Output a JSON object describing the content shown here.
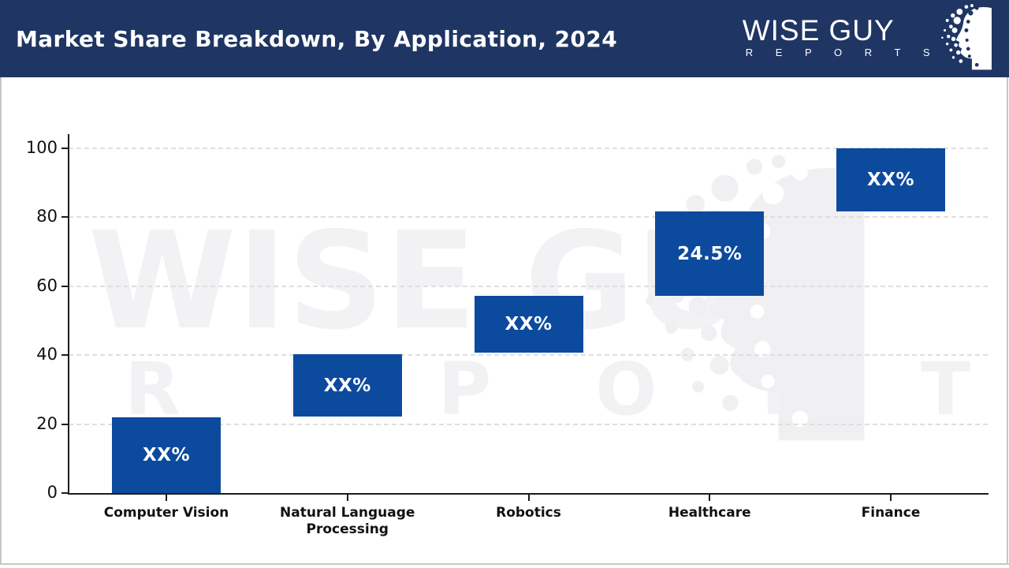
{
  "header": {
    "title": "Market Share Breakdown, By Application, 2024",
    "background_color": "#1f3563",
    "logo": {
      "line1": "WISE GUY",
      "line2": "R E P O R T S"
    }
  },
  "watermark": {
    "line1": "WISE GUY",
    "line2": "R E P O R T S"
  },
  "chart_data": {
    "type": "bar",
    "subtype": "waterfall",
    "title": "Market Share Breakdown, By Application, 2024",
    "categories": [
      "Computer Vision",
      "Natural Language\nProcessing",
      "Robotics",
      "Healthcare",
      "Finance"
    ],
    "segments": [
      {
        "category": "Computer Vision",
        "start": 0,
        "end": 22,
        "label": "XX%"
      },
      {
        "category": "Natural Language Processing",
        "start": 22.2,
        "end": 40.2,
        "label": "XX%"
      },
      {
        "category": "Robotics",
        "start": 40.7,
        "end": 57.1,
        "label": "XX%"
      },
      {
        "category": "Healthcare",
        "start": 57.2,
        "end": 81.7,
        "label": "24.5%"
      },
      {
        "category": "Finance",
        "start": 81.7,
        "end": 100,
        "label": "XX%"
      }
    ],
    "y_ticks": [
      0,
      20,
      40,
      60,
      80,
      100
    ],
    "ylim": [
      0,
      104
    ],
    "xlabel": "",
    "ylabel": "",
    "bar_color": "#0c4a9e",
    "grid": "horizontal-dashed",
    "gridline_color": "#dedede",
    "legend": "none"
  }
}
